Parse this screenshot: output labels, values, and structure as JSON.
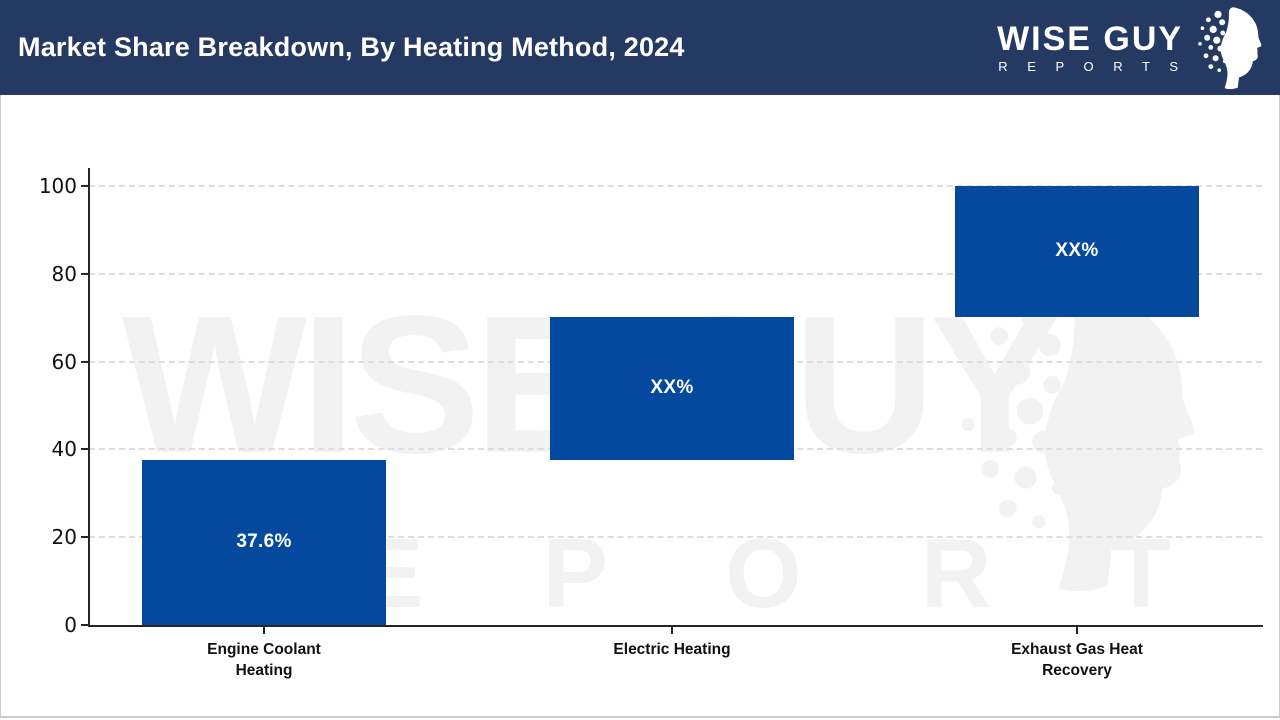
{
  "header": {
    "title": "Market Share Breakdown, By Heating Method, 2024",
    "logo": {
      "name_top": "WISE GUY",
      "name_bottom": "R E P O R T S"
    }
  },
  "watermark": {
    "text_top": "WISE GUY",
    "text_bottom": "R E P O R T S"
  },
  "chart_data": {
    "type": "bar",
    "subtype": "floating-waterfall",
    "title": "Market Share Breakdown, By Heating Method, 2024",
    "categories": [
      [
        "Engine Coolant",
        "Heating"
      ],
      [
        "Electric Heating"
      ],
      [
        "Exhaust Gas Heat",
        "Recovery"
      ]
    ],
    "bars": [
      {
        "category": "Engine Coolant Heating",
        "start": 0,
        "end": 37.6,
        "label": "37.6%"
      },
      {
        "category": "Electric Heating",
        "start": 37.6,
        "end": 70.2,
        "label": "XX%"
      },
      {
        "category": "Exhaust Gas Heat Recovery",
        "start": 70.2,
        "end": 100,
        "label": "XX%"
      }
    ],
    "xlabel": "",
    "ylabel": "",
    "ylim": [
      0,
      100
    ],
    "yticks": [
      0,
      20,
      40,
      60,
      80,
      100
    ],
    "grid": "horizontal-dashed",
    "legend": "none",
    "colors": {
      "bar": "#05499e",
      "bar_label": "#ffffff",
      "axis": "#262626",
      "tick_label": "#111111",
      "gridline": "#dedede",
      "header_bg": "#253a63",
      "header_text": "#ffffff",
      "watermark": "#f2f2f3"
    }
  }
}
